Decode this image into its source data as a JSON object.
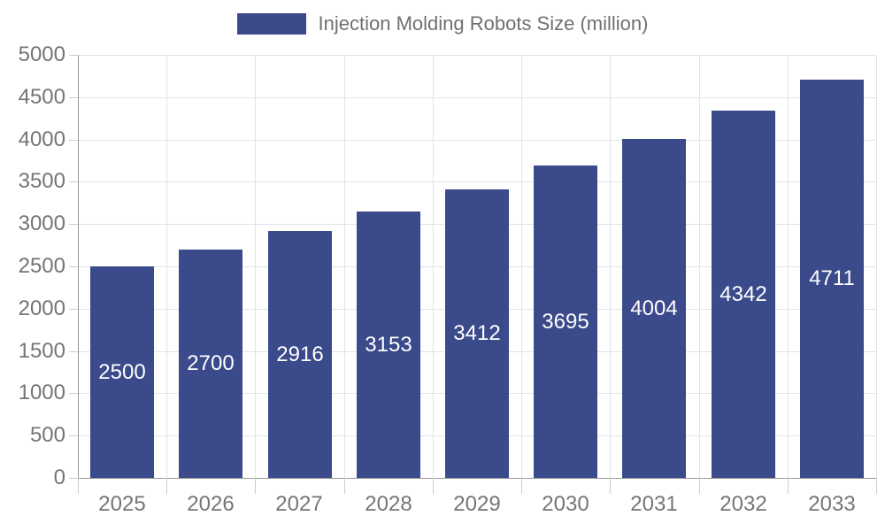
{
  "chart_data": {
    "type": "bar",
    "title": "Injection Molding Robots Size (million)",
    "legend": "Injection Molding Robots Size (million)",
    "legend_position": "top",
    "categories": [
      "2025",
      "2026",
      "2027",
      "2028",
      "2029",
      "2030",
      "2031",
      "2032",
      "2033"
    ],
    "values": [
      2500,
      2700,
      2916,
      3153,
      3412,
      3695,
      4004,
      4342,
      4711
    ],
    "xlabel": "",
    "ylabel": "",
    "ylim": [
      0,
      5000
    ],
    "y_ticks": [
      0,
      500,
      1000,
      1500,
      2000,
      2500,
      3000,
      3500,
      4000,
      4500,
      5000
    ],
    "grid": true,
    "bar_label_position": "inside-center",
    "colors": {
      "bar": "#3A4A8A",
      "bar_label": "#FFFFFF",
      "axis_text": "#757575",
      "legend_text": "#707070",
      "gridline": "#E1E3EA",
      "axis_line": "#999999",
      "tick": "#CCCCCC",
      "background": "#FFFFFF"
    }
  }
}
